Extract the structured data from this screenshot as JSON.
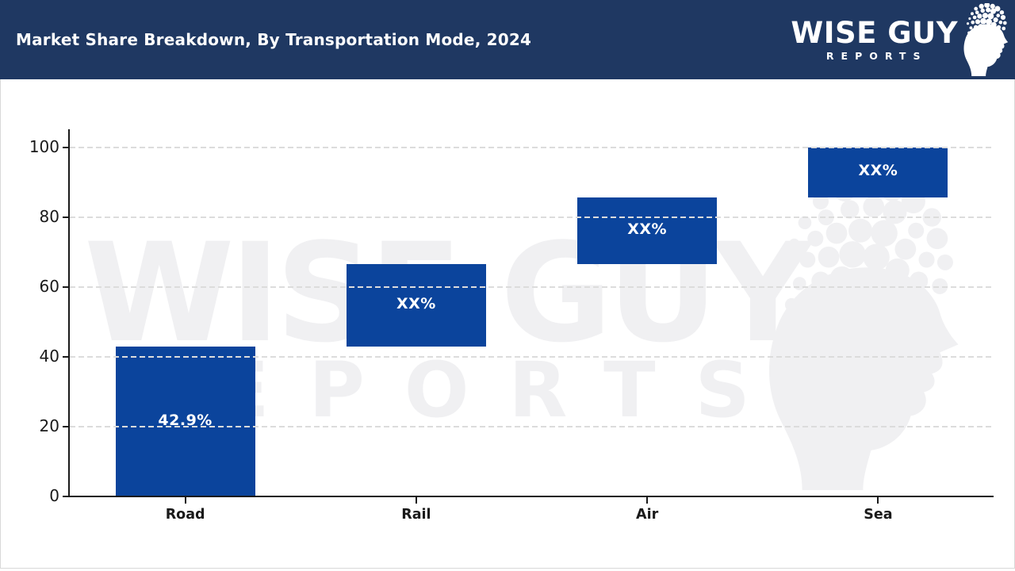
{
  "header": {
    "title": "Market Share Breakdown, By Transportation Mode, 2024",
    "bg_color": "#1f3862",
    "logo": {
      "line1": "WISE GUY",
      "line2": "REPORTS"
    }
  },
  "watermark": {
    "line1": "WISE GUY",
    "line2": "REPORTS"
  },
  "chart_data": {
    "type": "bar",
    "subtype": "waterfall",
    "title": "Market Share Breakdown, By Transportation Mode, 2024",
    "categories": [
      "Road",
      "Rail",
      "Air",
      "Sea"
    ],
    "segments": [
      {
        "category": "Road",
        "start": 0,
        "end": 42.9,
        "label": "42.9%"
      },
      {
        "category": "Rail",
        "start": 42.9,
        "end": 66.7,
        "label": "XX%"
      },
      {
        "category": "Air",
        "start": 66.7,
        "end": 85.7,
        "label": "XX%"
      },
      {
        "category": "Sea",
        "start": 85.7,
        "end": 100,
        "label": "XX%"
      }
    ],
    "y_ticks": [
      0,
      20,
      40,
      60,
      80,
      100
    ],
    "ylim": [
      0,
      105
    ],
    "xlabel": "",
    "ylabel": "",
    "grid": "horizontal-dashed",
    "legend": "none",
    "bar_color": "#0b449c",
    "bar_label_color": "#ffffff"
  }
}
